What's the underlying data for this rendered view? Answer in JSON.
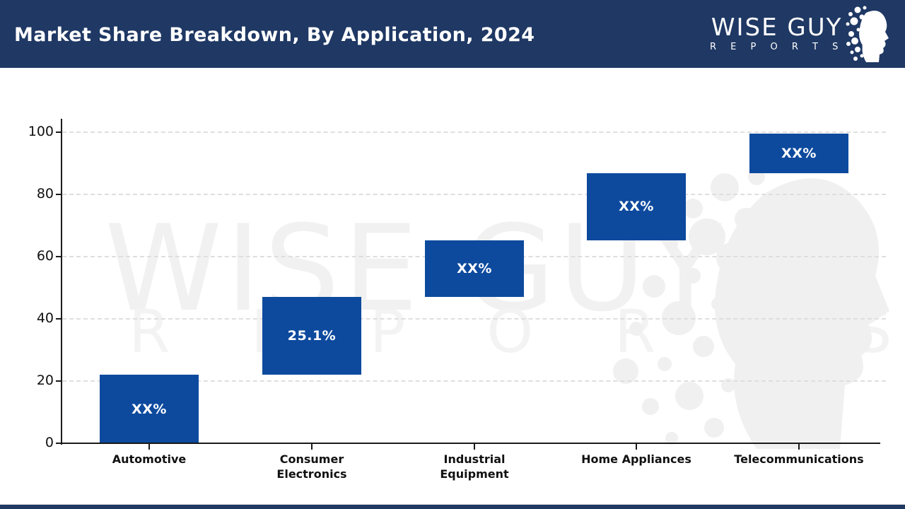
{
  "header": {
    "title": "Market Share Breakdown, By Application, 2024",
    "bg_color": "#1f3864",
    "logo": {
      "line1": "WISE GUY",
      "line2": "R E P O R T S"
    }
  },
  "watermark": {
    "text1": "WISE GUY",
    "text2": "R E P O R T S"
  },
  "footer": {
    "bar_color": "#1f3864"
  },
  "chart_data": {
    "type": "bar",
    "variant": "waterfall",
    "title": "Market Share Breakdown, By Application, 2024",
    "categories": [
      "Automotive",
      "Consumer Electronics",
      "Industrial Equipment",
      "Home Appliances",
      "Telecommunications"
    ],
    "category_label_lines": [
      [
        "Automotive"
      ],
      [
        "Consumer",
        "Electronics"
      ],
      [
        "Industrial",
        "Equipment"
      ],
      [
        "Home Appliances"
      ],
      [
        "Telecommunications"
      ]
    ],
    "segments": [
      {
        "category": "Automotive",
        "start": 0,
        "end": 22,
        "label": "XX%"
      },
      {
        "category": "Consumer Electronics",
        "start": 22,
        "end": 47.1,
        "label": "25.1%"
      },
      {
        "category": "Industrial Equipment",
        "start": 47.1,
        "end": 65.3,
        "label": "XX%"
      },
      {
        "category": "Home Appliances",
        "start": 65.3,
        "end": 86.9,
        "label": "XX%"
      },
      {
        "category": "Telecommunications",
        "start": 86.9,
        "end": 99.6,
        "label": "XX%"
      }
    ],
    "yticks": [
      0,
      20,
      40,
      60,
      80,
      100
    ],
    "ylim": [
      0,
      105
    ],
    "xlabel": "",
    "ylabel": "",
    "grid": "dashed-horizontal",
    "legend": "none",
    "colors": {
      "bar": "#0d4a9e",
      "bar_label": "#ffffff",
      "axis": "#1a1a1a",
      "grid": "#dedede",
      "tick_label": "#111111"
    }
  }
}
